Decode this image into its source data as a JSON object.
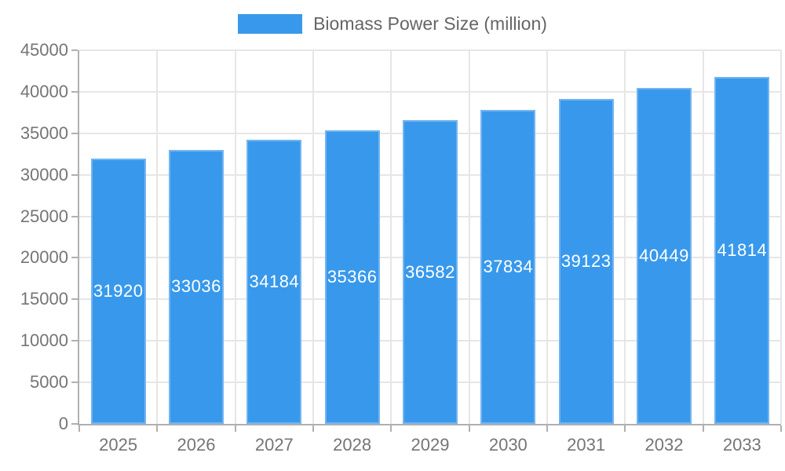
{
  "chart_data": {
    "type": "bar",
    "title": "Biomass Power Size (million)",
    "legend_position": "top-center",
    "categories": [
      "2025",
      "2026",
      "2027",
      "2028",
      "2029",
      "2030",
      "2031",
      "2032",
      "2033"
    ],
    "values": [
      31920,
      33036,
      34184,
      35366,
      36582,
      37834,
      39123,
      40449,
      41814
    ],
    "value_labels": [
      "31920",
      "33036",
      "34184",
      "35366",
      "36582",
      "37834",
      "39123",
      "40449",
      "41814"
    ],
    "xlabel": "",
    "ylabel": "",
    "ylim": [
      0,
      45000
    ],
    "ytick_step": 5000,
    "ytick_labels": [
      "0",
      "5000",
      "10000",
      "15000",
      "20000",
      "25000",
      "30000",
      "35000",
      "40000",
      "45000"
    ],
    "grid": "on",
    "colors": {
      "bar": "#3899EC",
      "bar_edge": "#74b4f1",
      "grid": "#e6e6e6",
      "axis": "#b0b0b0",
      "tick_label": "#757575",
      "legend_text": "#666666",
      "value_label": "#ffffff"
    }
  }
}
